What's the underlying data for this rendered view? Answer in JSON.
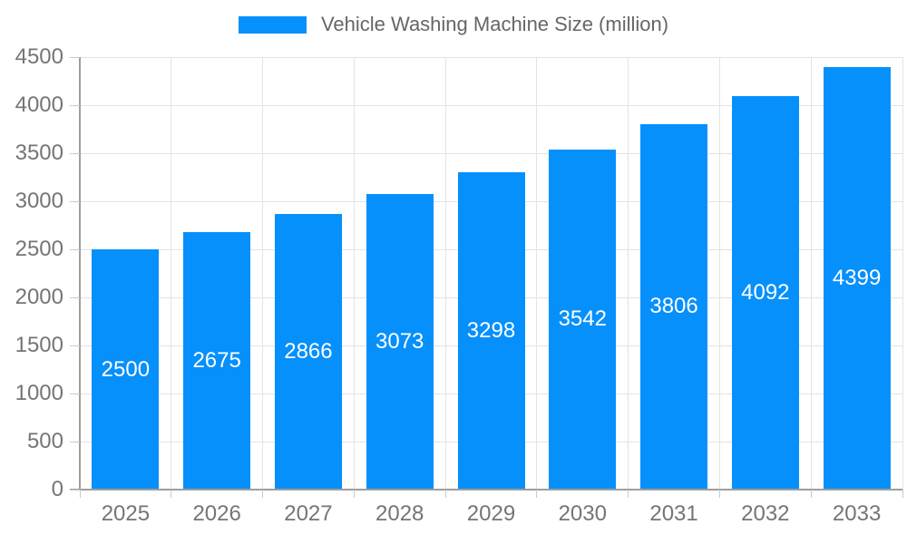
{
  "legend": {
    "label": "Vehicle Washing Machine Size (million)"
  },
  "chart_data": {
    "type": "bar",
    "title": "Vehicle Washing Machine Size (million)",
    "categories": [
      "2025",
      "2026",
      "2027",
      "2028",
      "2029",
      "2030",
      "2031",
      "2032",
      "2033"
    ],
    "values": [
      2500,
      2675,
      2866,
      3073,
      3298,
      3542,
      3806,
      4092,
      4399
    ],
    "xlabel": "",
    "ylabel": "",
    "ylim": [
      0,
      4500
    ],
    "ytick_step": 500,
    "ytick_labels": [
      "0",
      "500",
      "1000",
      "1500",
      "2000",
      "2500",
      "3000",
      "3500",
      "4000",
      "4500"
    ],
    "grid": true,
    "legend_position": "top-center",
    "value_labels_inside_bars": true,
    "colors": {
      "bar": "#0690fb",
      "axis_line": "#9e9e9e",
      "grid_line": "#e3e3e3",
      "tick_line": "#c9c9c9",
      "axis_label": "#757575",
      "legend_text": "#666666",
      "value_label": "#ffffff",
      "background": "#ffffff"
    }
  }
}
